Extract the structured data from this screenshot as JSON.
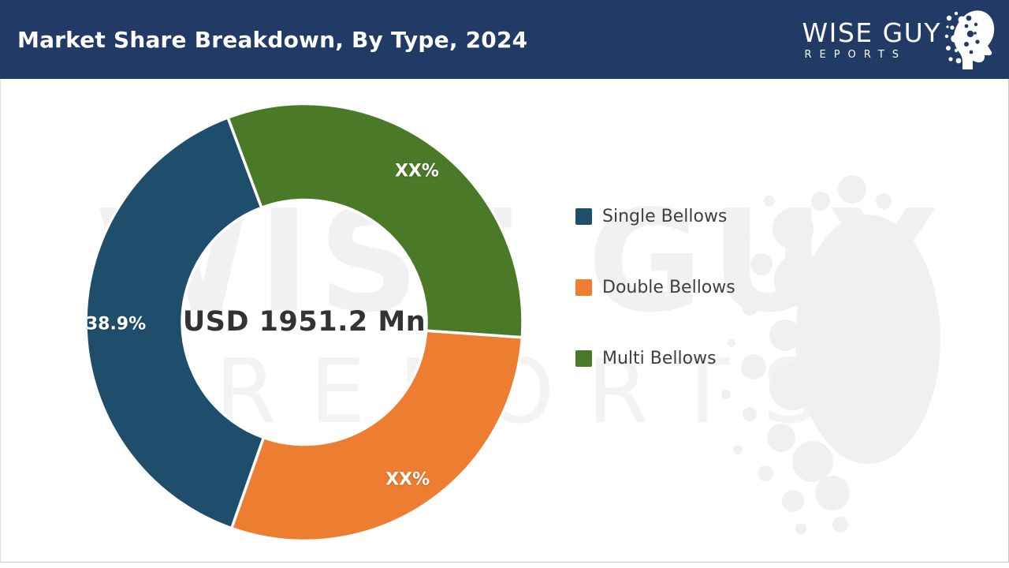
{
  "header": {
    "title": "Market Share Breakdown, By Type, 2024",
    "logo": {
      "wordmark": "WISE GUY",
      "subtitle": "REPORTS"
    }
  },
  "watermark": {
    "wordmark": "WISE GUY",
    "subtitle": "REPORTS"
  },
  "colors": {
    "header_bg": "#213A66",
    "blue": "#1F4E6D",
    "orange": "#ED7D31",
    "green": "#4A7A28",
    "center_text": "#333333",
    "watermark_gray": "#F1F1F1"
  },
  "chart_data": {
    "type": "donut",
    "title": "Market Share Breakdown, By Type, 2024",
    "center_text": "USD 1951.2 Mn",
    "legend_position": "right",
    "start_angle_deg": -20.5,
    "draw_order": [
      2,
      1,
      0
    ],
    "slices": [
      {
        "label": "Single Bellows",
        "value": 38.9,
        "display": "38.9%",
        "color": "#1F4E6D"
      },
      {
        "label": "Double Bellows",
        "value": 29.3,
        "display": "XX%",
        "color": "#ED7D31"
      },
      {
        "label": "Multi Bellows",
        "value": 31.8,
        "display": "XX%",
        "color": "#4A7A28"
      }
    ]
  }
}
